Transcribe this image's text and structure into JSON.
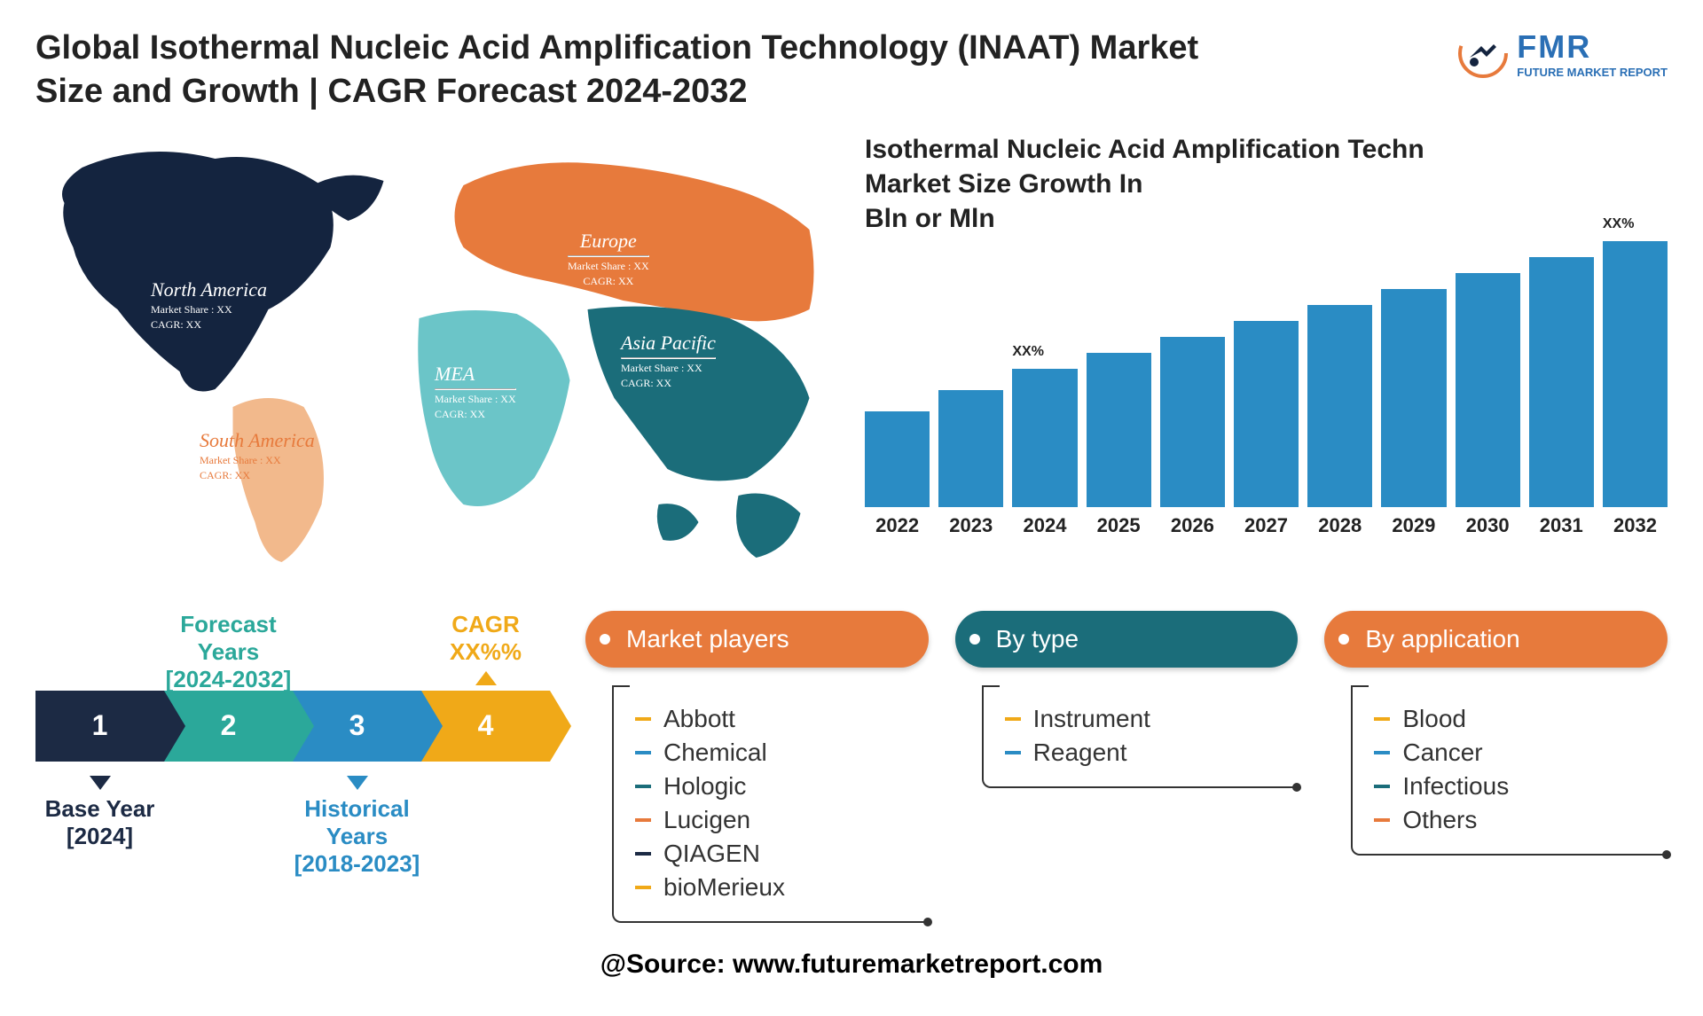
{
  "title_line1": "Global Isothermal Nucleic Acid Amplification Technology (INAAT) Market",
  "title_line2": " Size and Growth | CAGR Forecast 2024-2032",
  "logo": {
    "main": "FMR",
    "sub": "FUTURE MARKET REPORT"
  },
  "map": {
    "regions": [
      {
        "name": "North America",
        "share": "Market Share : XX",
        "cagr": "CAGR: XX",
        "color": "#14243f"
      },
      {
        "name": "South America",
        "share": "Market Share : XX",
        "cagr": "CAGR: XX",
        "color": "#e77a3c"
      },
      {
        "name": "Europe",
        "share": "Market Share : XX",
        "cagr": "CAGR: XX",
        "color": "#e77a3c"
      },
      {
        "name": "MEA",
        "share": "Market Share : XX",
        "cagr": "CAGR: XX",
        "color": "#6bc5c8"
      },
      {
        "name": "Asia Pacific",
        "share": "Market Share : XX",
        "cagr": "CAGR: XX",
        "color": "#1b6d7a"
      }
    ]
  },
  "chart": {
    "title": "Isothermal Nucleic Acid Amplification Techn\nMarket Size Growth In\nBln or Mln",
    "type": "bar",
    "years": [
      "2022",
      "2023",
      "2024",
      "2025",
      "2026",
      "2027",
      "2028",
      "2029",
      "2030",
      "2031",
      "2032"
    ],
    "values": [
      36,
      44,
      52,
      58,
      64,
      70,
      76,
      82,
      88,
      94,
      100
    ],
    "value_labels": [
      "",
      "",
      "XX%",
      "",
      "",
      "",
      "",
      "",
      "",
      "",
      "XX%"
    ],
    "bar_color": "#2a8cc4",
    "background_color": "#ffffff",
    "year_fontsize": 22,
    "label_fontsize": 16
  },
  "timeline": {
    "segments": [
      {
        "num": "1",
        "color": "#1c2a44",
        "label": "Base Year",
        "sub": "[2024]",
        "label_color": "#1c2a44",
        "pos": "bottom"
      },
      {
        "num": "2",
        "color": "#2ba89a",
        "label": "Forecast Years",
        "sub": "[2024-2032]",
        "label_color": "#2ba89a",
        "pos": "top"
      },
      {
        "num": "3",
        "color": "#2a8cc4",
        "label": "Historical Years",
        "sub": "[2018-2023]",
        "label_color": "#2a8cc4",
        "pos": "bottom"
      },
      {
        "num": "4",
        "color": "#f0a918",
        "label": "CAGR",
        "sub": "XX%%",
        "label_color": "#f0a918",
        "pos": "top"
      }
    ]
  },
  "categories": [
    {
      "title": "Market players",
      "pill_color": "#e77a3c",
      "items": [
        {
          "label": "Abbott",
          "tick": "#f0a918"
        },
        {
          "label": "Chemical",
          "tick": "#2a8cc4"
        },
        {
          "label": "Hologic",
          "tick": "#1b6d7a"
        },
        {
          "label": "Lucigen",
          "tick": "#e77a3c"
        },
        {
          "label": "QIAGEN",
          "tick": "#1c2a44"
        },
        {
          "label": "bioMerieux",
          "tick": "#f0a918"
        }
      ]
    },
    {
      "title": "By type",
      "pill_color": "#1b6d7a",
      "items": [
        {
          "label": "Instrument",
          "tick": "#f0a918"
        },
        {
          "label": "Reagent",
          "tick": "#2a8cc4"
        }
      ]
    },
    {
      "title": "By application",
      "pill_color": "#e77a3c",
      "items": [
        {
          "label": "Blood",
          "tick": "#f0a918"
        },
        {
          "label": "Cancer",
          "tick": "#2a8cc4"
        },
        {
          "label": "Infectious",
          "tick": "#1b6d7a"
        },
        {
          "label": "Others",
          "tick": "#e77a3c"
        }
      ]
    }
  ],
  "source": "@Source: www.futuremarketreport.com"
}
